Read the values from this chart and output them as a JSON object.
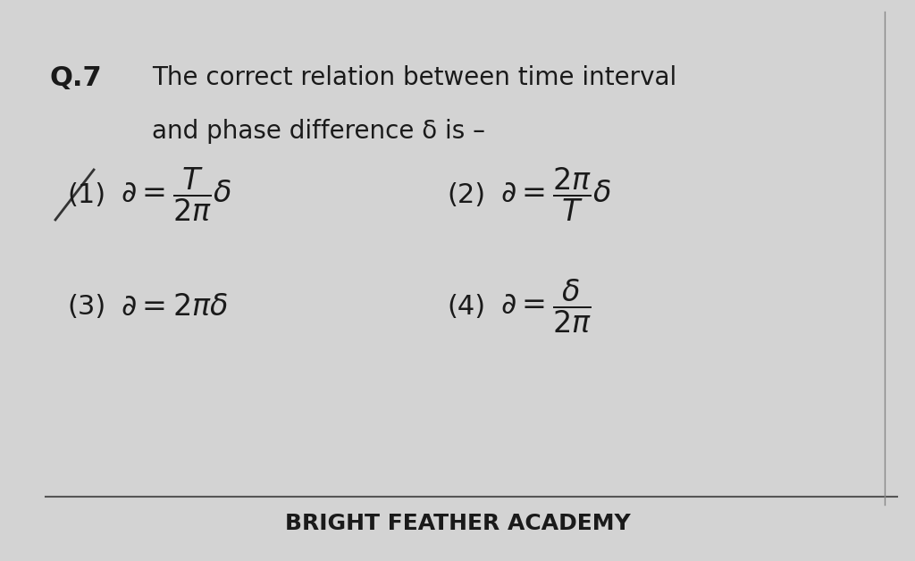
{
  "background_color": "#d3d3d3",
  "content_bg": "#d3d3d3",
  "title_text": "Q.7",
  "question_line1": "The correct relation between time interval",
  "question_line2": "and phase difference δ is –",
  "option1_label": "(1)",
  "option1_formula": "$\\partial = \\dfrac{T}{2\\pi}\\delta$",
  "option2_label": "(2)",
  "option2_formula": "$\\partial = \\dfrac{2\\pi}{T}\\delta$",
  "option3_label": "(3)",
  "option3_formula": "$\\partial = 2\\pi\\delta$",
  "option4_label": "(4)",
  "option4_formula": "$\\partial = \\dfrac{\\delta}{2\\pi}$",
  "footer_text": "BRIGHT FEATHER ACADEMY",
  "text_color": "#1a1a1a",
  "footer_line_color": "#555555",
  "font_size_question": 20,
  "font_size_options": 22,
  "font_size_footer": 18,
  "font_size_q_label": 22,
  "strikethrough_option1": true
}
